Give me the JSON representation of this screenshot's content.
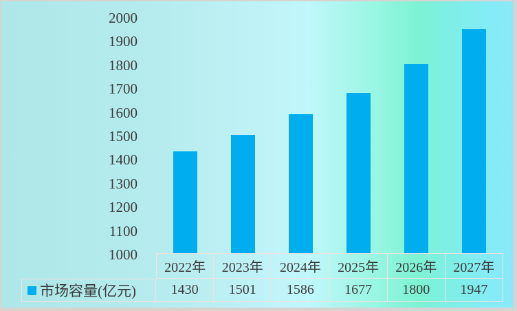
{
  "window": {
    "frame_color": "#d7d3d3",
    "panel_gradient_colors": [
      "#aee7e8",
      "#b5ebed",
      "#bff2f6",
      "#c0f7fa",
      "#9cf6e4",
      "#7ef3d3",
      "#7defe3",
      "#83ecf4",
      "#8ae9f9"
    ],
    "text_color": "#3b3b3b",
    "table_border_color": "#f0e2e2"
  },
  "chart_data": {
    "type": "bar",
    "title": "",
    "categories": [
      "2022年",
      "2023年",
      "2024年",
      "2025年",
      "2026年",
      "2027年"
    ],
    "series": [
      {
        "name": "市场容量(亿元)",
        "values": [
          1430,
          1501,
          1586,
          1677,
          1800,
          1947
        ]
      }
    ],
    "xlabel": "",
    "ylabel": "",
    "ylim": [
      1000,
      2000
    ],
    "ytick_step": 100,
    "yticks": [
      2000,
      1900,
      1800,
      1700,
      1600,
      1500,
      1400,
      1300,
      1200,
      1100,
      1000
    ],
    "bar_color": "#00aeef",
    "grid": false,
    "legend_position": "bottom-table-row",
    "data_table_shown": true
  }
}
